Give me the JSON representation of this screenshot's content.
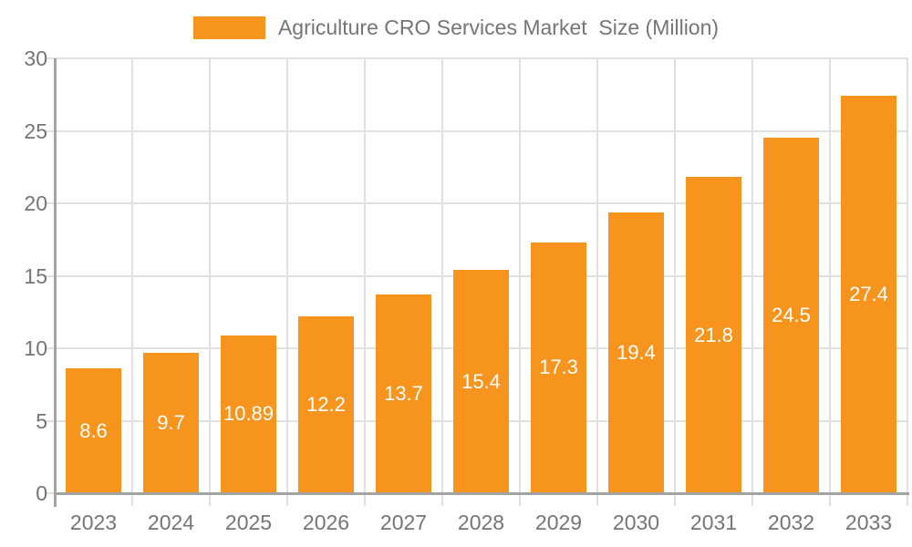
{
  "legend": {
    "label": "Agriculture CRO Services Market  Size (Million)",
    "swatch_color": "#F7941E"
  },
  "chart_data": {
    "type": "bar",
    "title": "Agriculture CRO Services Market  Size (Million)",
    "categories": [
      "2023",
      "2024",
      "2025",
      "2026",
      "2027",
      "2028",
      "2029",
      "2030",
      "2031",
      "2032",
      "2033"
    ],
    "values": [
      8.6,
      9.7,
      10.89,
      12.2,
      13.7,
      15.4,
      17.3,
      19.4,
      21.8,
      24.5,
      27.4
    ],
    "value_labels": [
      "8.6",
      "9.7",
      "10.89",
      "12.2",
      "13.7",
      "15.4",
      "17.3",
      "19.4",
      "21.8",
      "24.5",
      "27.4"
    ],
    "xlabel": "",
    "ylabel": "",
    "ylim": [
      0,
      30
    ],
    "yticks": [
      0,
      5,
      10,
      15,
      20,
      25,
      30
    ],
    "grid": true,
    "legend_position": "top-center",
    "colors": {
      "bar": "#F7941E",
      "value_label": "#FFFFFF",
      "axis_text": "#757575",
      "gridline": "#E0E0E0",
      "axis_line": "#A3A3A3",
      "background": "#FFFFFF"
    }
  }
}
